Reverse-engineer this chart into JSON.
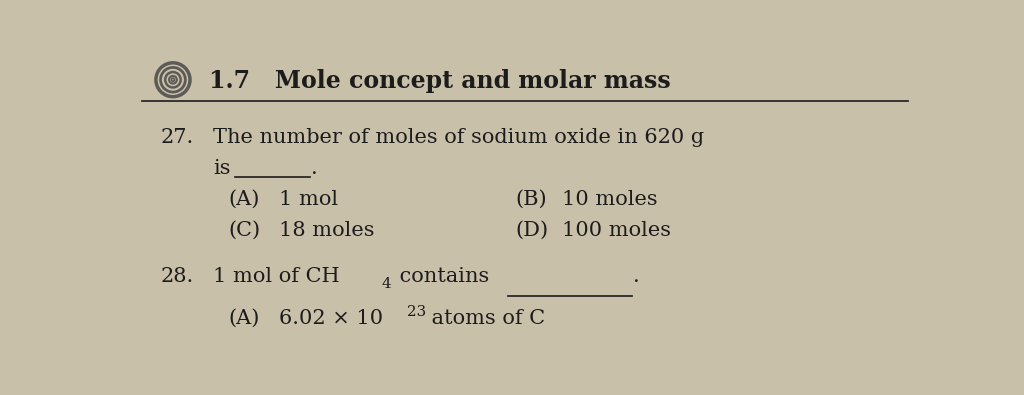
{
  "bg_color": "#c9c0aa",
  "text_color": "#1c1c1c",
  "line_color": "#2a2a2a",
  "title_text": "1.7   Mole concept and molar mass",
  "title_fontsize": 17,
  "body_fontsize": 15,
  "option_fontsize": 15,
  "q27_num": "27.",
  "q27_line1": "The number of moles of sodium oxide in 620 g",
  "q27_line2_pre": "is",
  "q27_options": [
    [
      "(A)",
      "1 mol",
      "(B)",
      "10 moles"
    ],
    [
      "(C)",
      "18 moles",
      "(D)",
      "100 moles"
    ]
  ],
  "q28_num": "28.",
  "q28_pre": "1 mol of CH",
  "q28_sub": "4",
  "q28_post": " contains",
  "q28_opt_a_label": "(A)",
  "q28_opt_a_pre": "6.02 × 10",
  "q28_opt_a_sup": "23",
  "q28_opt_a_post": " atoms of C"
}
